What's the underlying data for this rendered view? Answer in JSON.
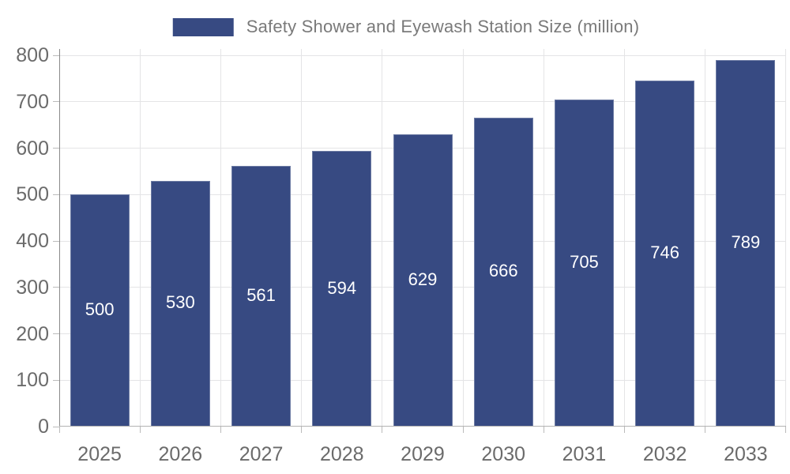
{
  "chart_data": {
    "type": "bar",
    "title": "Safety Shower and Eyewash Station Size (million)",
    "categories": [
      "2025",
      "2026",
      "2027",
      "2028",
      "2029",
      "2030",
      "2031",
      "2032",
      "2033"
    ],
    "values": [
      500,
      530,
      561,
      594,
      629,
      666,
      705,
      746,
      789
    ],
    "xlabel": "",
    "ylabel": "",
    "ylim": [
      0,
      800
    ],
    "yticks": [
      0,
      100,
      200,
      300,
      400,
      500,
      600,
      700,
      800
    ],
    "grid": true,
    "legend_position": "top",
    "value_labels": "inside-center",
    "colors": {
      "bar": "#374a82",
      "bar_border": "#b9bcd3",
      "grid": "#e4e4e6",
      "y_axis": "#8a8a8a",
      "x_axis": "#b3b3b3",
      "tick": "#bbbbbb",
      "tick_label": "#6b6b6b",
      "title": "#7a7a7a",
      "value_label": "#ffffff"
    }
  }
}
